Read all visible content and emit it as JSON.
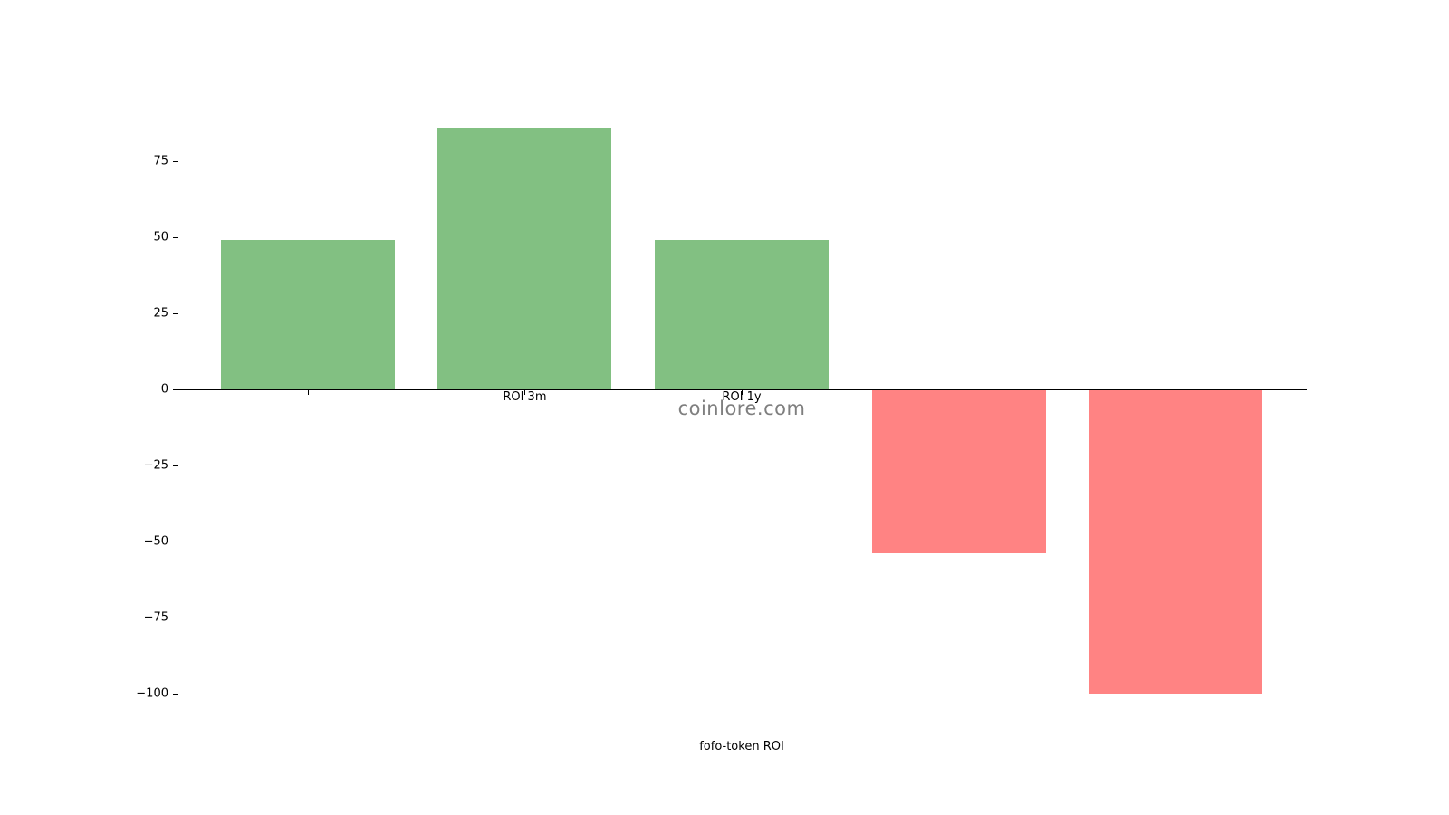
{
  "figure": {
    "background": "#ffffff",
    "watermark": {
      "text": "coinlore.com",
      "color": "#7f7f7f"
    }
  },
  "chart_data": {
    "type": "bar",
    "title": "fofo-token ROI",
    "categories": [
      "",
      "ROI 3m",
      "ROI 1y",
      "",
      ""
    ],
    "values": [
      49,
      86,
      49,
      -54,
      -100
    ],
    "positive_color": "#82c082",
    "negative_color": "#ff8383",
    "axis_color": "#000000",
    "tick_label_color": "#000000",
    "y_ticks": [
      75,
      50,
      25,
      0,
      -25,
      -50,
      -75,
      -100
    ],
    "y_tick_labels": [
      "75",
      "50",
      "25",
      "0",
      "−25",
      "−50",
      "−75",
      "−100"
    ],
    "ylim": [
      -105.7,
      96.1
    ],
    "xlabel": "",
    "ylabel": "",
    "grid": false,
    "legend": null
  }
}
